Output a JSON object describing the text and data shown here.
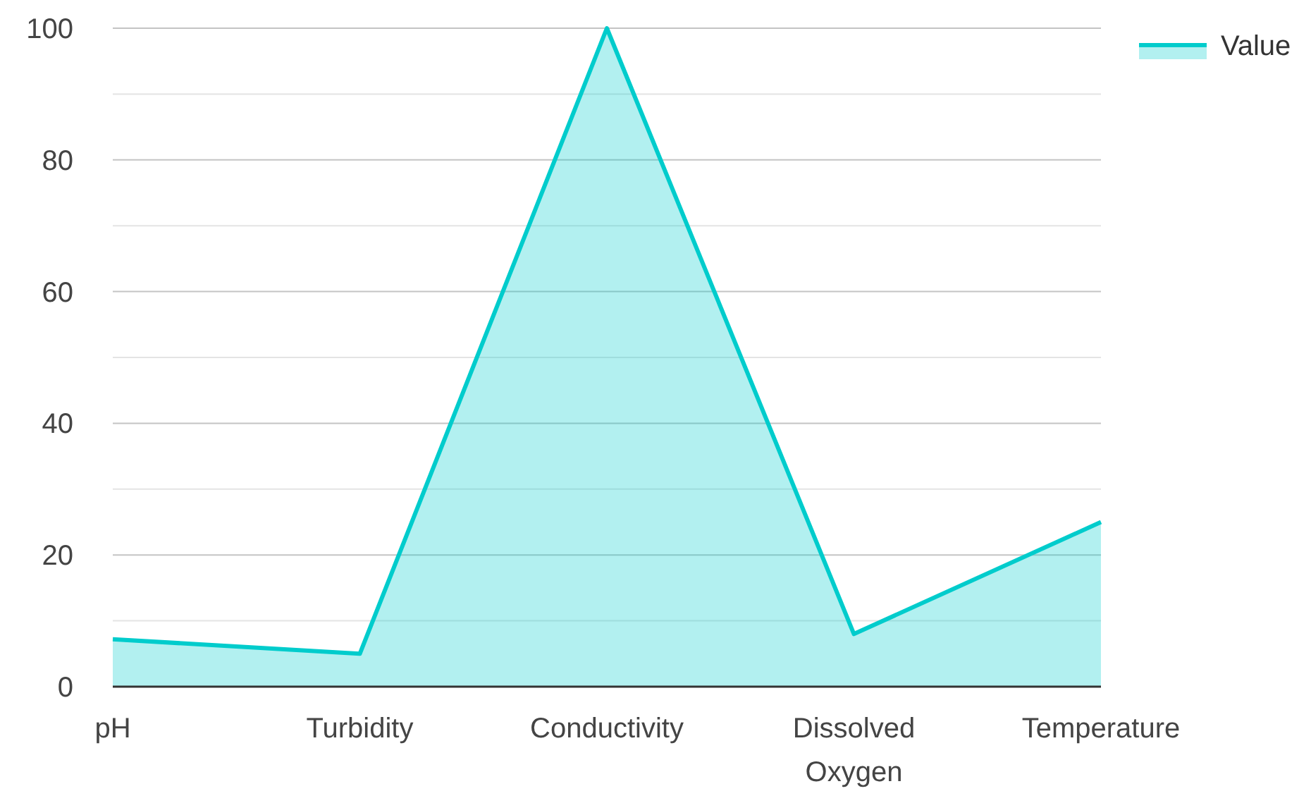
{
  "chart_data": {
    "type": "area",
    "categories": [
      "pH",
      "Turbidity",
      "Conductivity",
      "Dissolved Oxygen",
      "Temperature"
    ],
    "series": [
      {
        "name": "Value",
        "color": "#00cccc",
        "values": [
          7.2,
          5,
          100,
          8,
          25
        ]
      }
    ],
    "ylim": [
      0,
      100
    ],
    "yticks": [
      0,
      {
        "value": 10,
        "label": null
      },
      20,
      {
        "value": 30,
        "label": null
      },
      40,
      {
        "value": 50,
        "label": null
      },
      60,
      {
        "value": 70,
        "label": null
      },
      80,
      {
        "value": 90,
        "label": null
      },
      100
    ],
    "grid": "y",
    "legend": "top right"
  }
}
